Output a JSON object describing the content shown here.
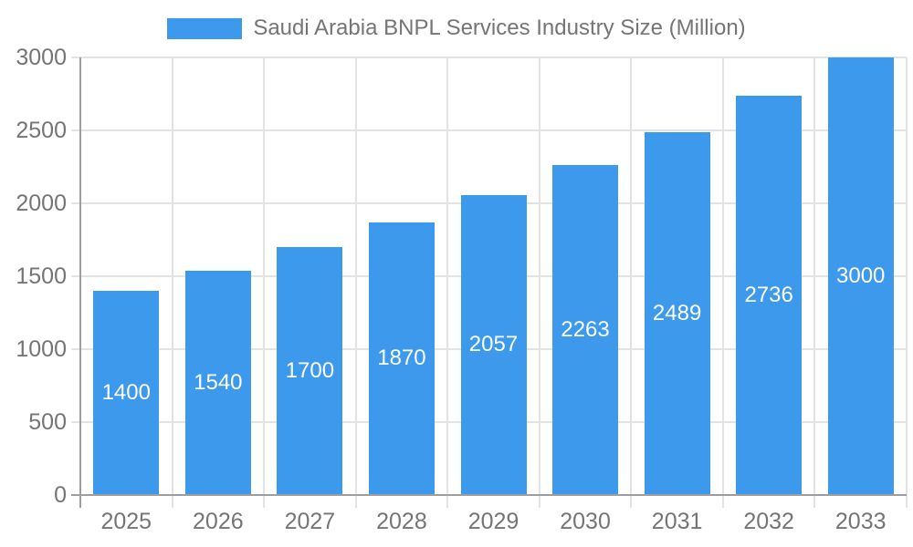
{
  "legend": {
    "label": "Saudi Arabia BNPL Services Industry Size (Million)"
  },
  "chart_data": {
    "type": "bar",
    "title": "Saudi Arabia BNPL Services Industry Size (Million)",
    "categories": [
      "2025",
      "2026",
      "2027",
      "2028",
      "2029",
      "2030",
      "2031",
      "2032",
      "2033"
    ],
    "values": [
      1400,
      1540,
      1700,
      1870,
      2057,
      2263,
      2489,
      2736,
      3000
    ],
    "value_labels": [
      "1400",
      "1540",
      "1700",
      "1870",
      "2057",
      "2263",
      "2489",
      "2736",
      "3000"
    ],
    "xlabel": "",
    "ylabel": "",
    "ylim": [
      0,
      3000
    ],
    "yticks": [
      0,
      500,
      1000,
      1500,
      2000,
      2500,
      3000
    ],
    "grid": true,
    "legend_position": "top-center",
    "colors": {
      "bar": "#3C99EC",
      "grid": "#E3E3E3",
      "axis": "#9E9E9E",
      "label_text": "#757575",
      "value_text": "#FFFFFF",
      "background": "#FFFFFF"
    }
  }
}
